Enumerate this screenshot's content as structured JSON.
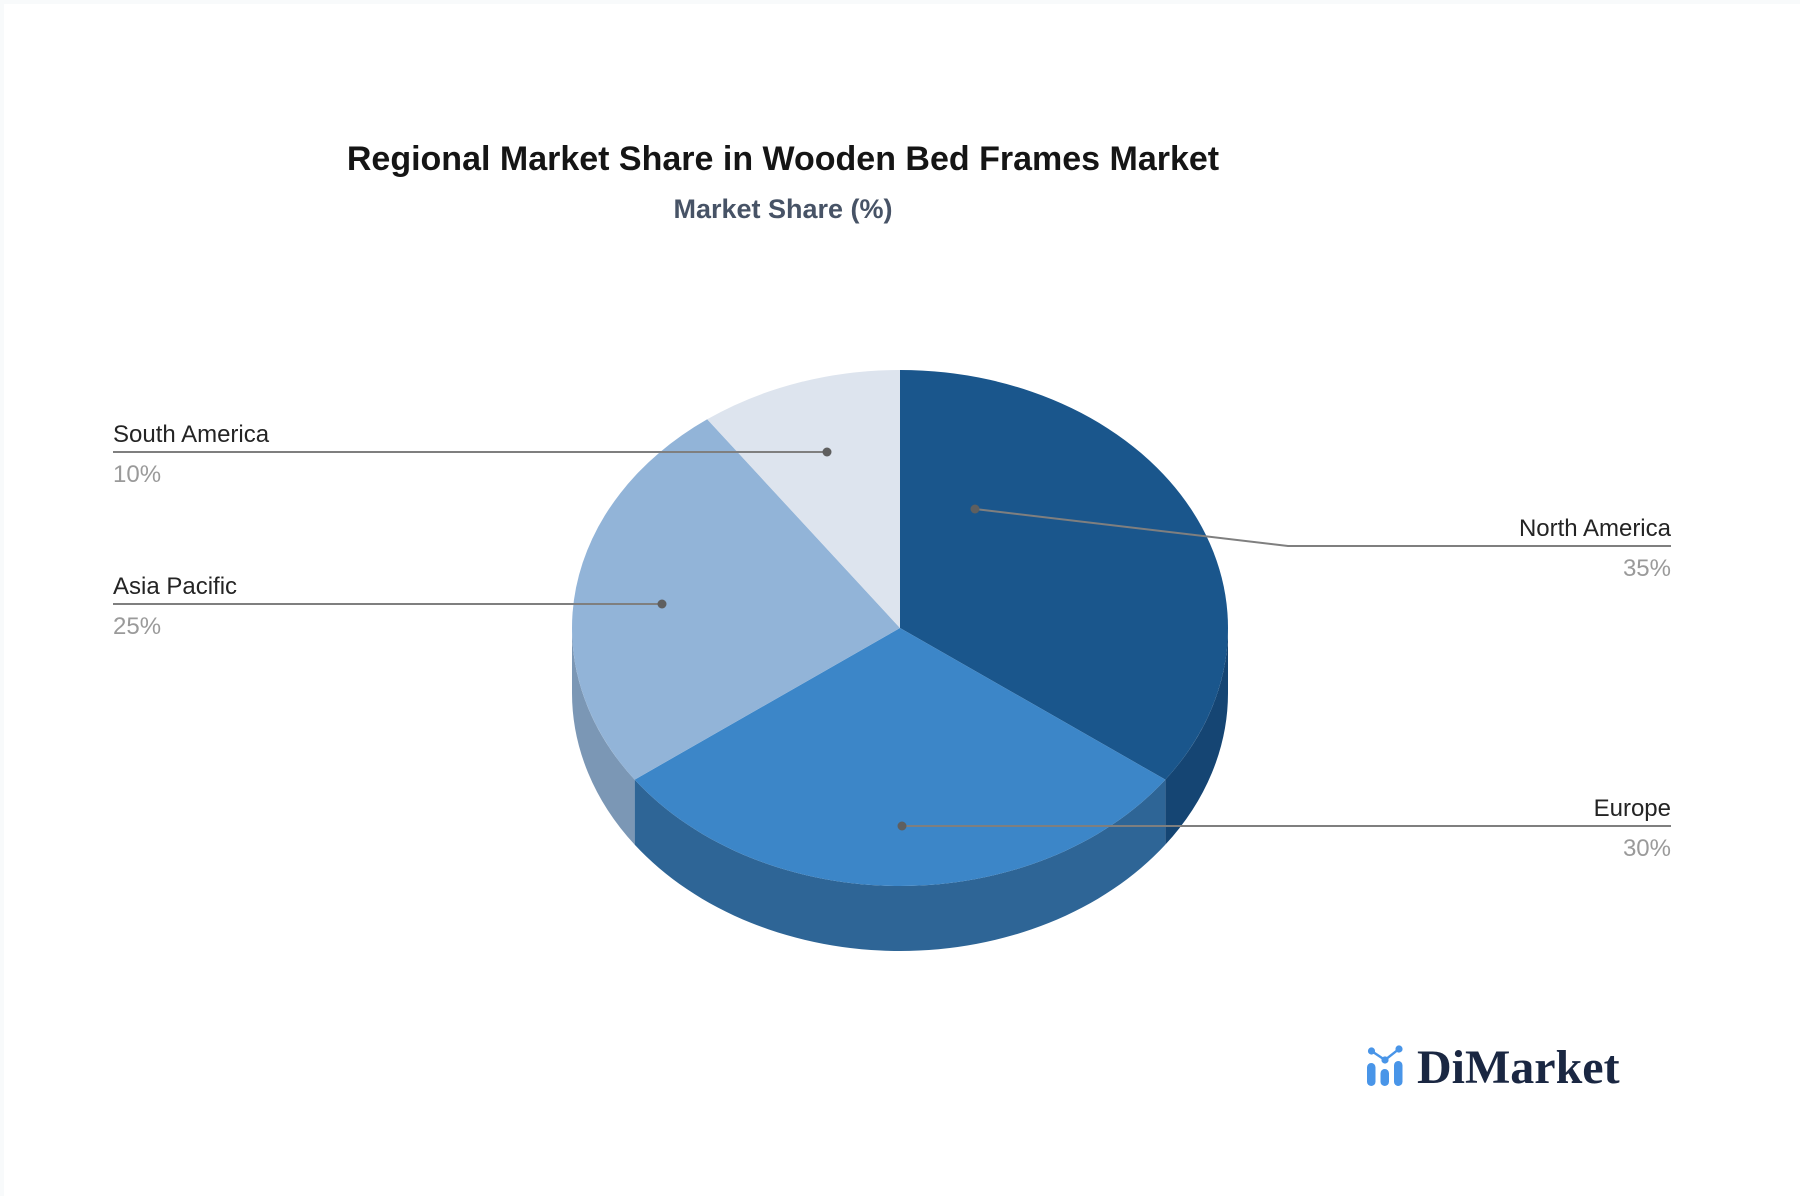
{
  "chart": {
    "title": "Regional Market Share in Wooden Bed Frames Market",
    "subtitle": "Market Share (%)"
  },
  "chart_data": {
    "type": "pie",
    "title": "Regional Market Share in Wooden Bed Frames Market",
    "subtitle": "Market Share (%)",
    "unit": "%",
    "effect": "3d",
    "start_angle_deg": 0,
    "direction": "clockwise",
    "legend": "none",
    "slices": [
      {
        "label": "North America",
        "value": 35,
        "pct_label": "35%",
        "color": "#1a568c",
        "side_color": "#154573"
      },
      {
        "label": "Europe",
        "value": 30,
        "pct_label": "30%",
        "color": "#3c86c8",
        "side_color": "#2e6596"
      },
      {
        "label": "Asia Pacific",
        "value": 25,
        "pct_label": "25%",
        "color": "#92b4d8",
        "side_color": "#7b97b5"
      },
      {
        "label": "South America",
        "value": 10,
        "pct_label": "10%",
        "color": "#dde4ee",
        "side_color": "#bac3d4"
      }
    ]
  },
  "branding": {
    "logo_text": "DiMarket",
    "logo_text_color": "#1a2742",
    "logo_accent_color": "#4995e8"
  },
  "colors": {
    "background": "#ffffff",
    "title_text": "#151515",
    "subtitle_text": "#475366",
    "label_text": "#242424",
    "pct_text": "#9a9a9a",
    "leader_line": "#7f7f7f",
    "leader_dot": "#5f5f5f"
  }
}
